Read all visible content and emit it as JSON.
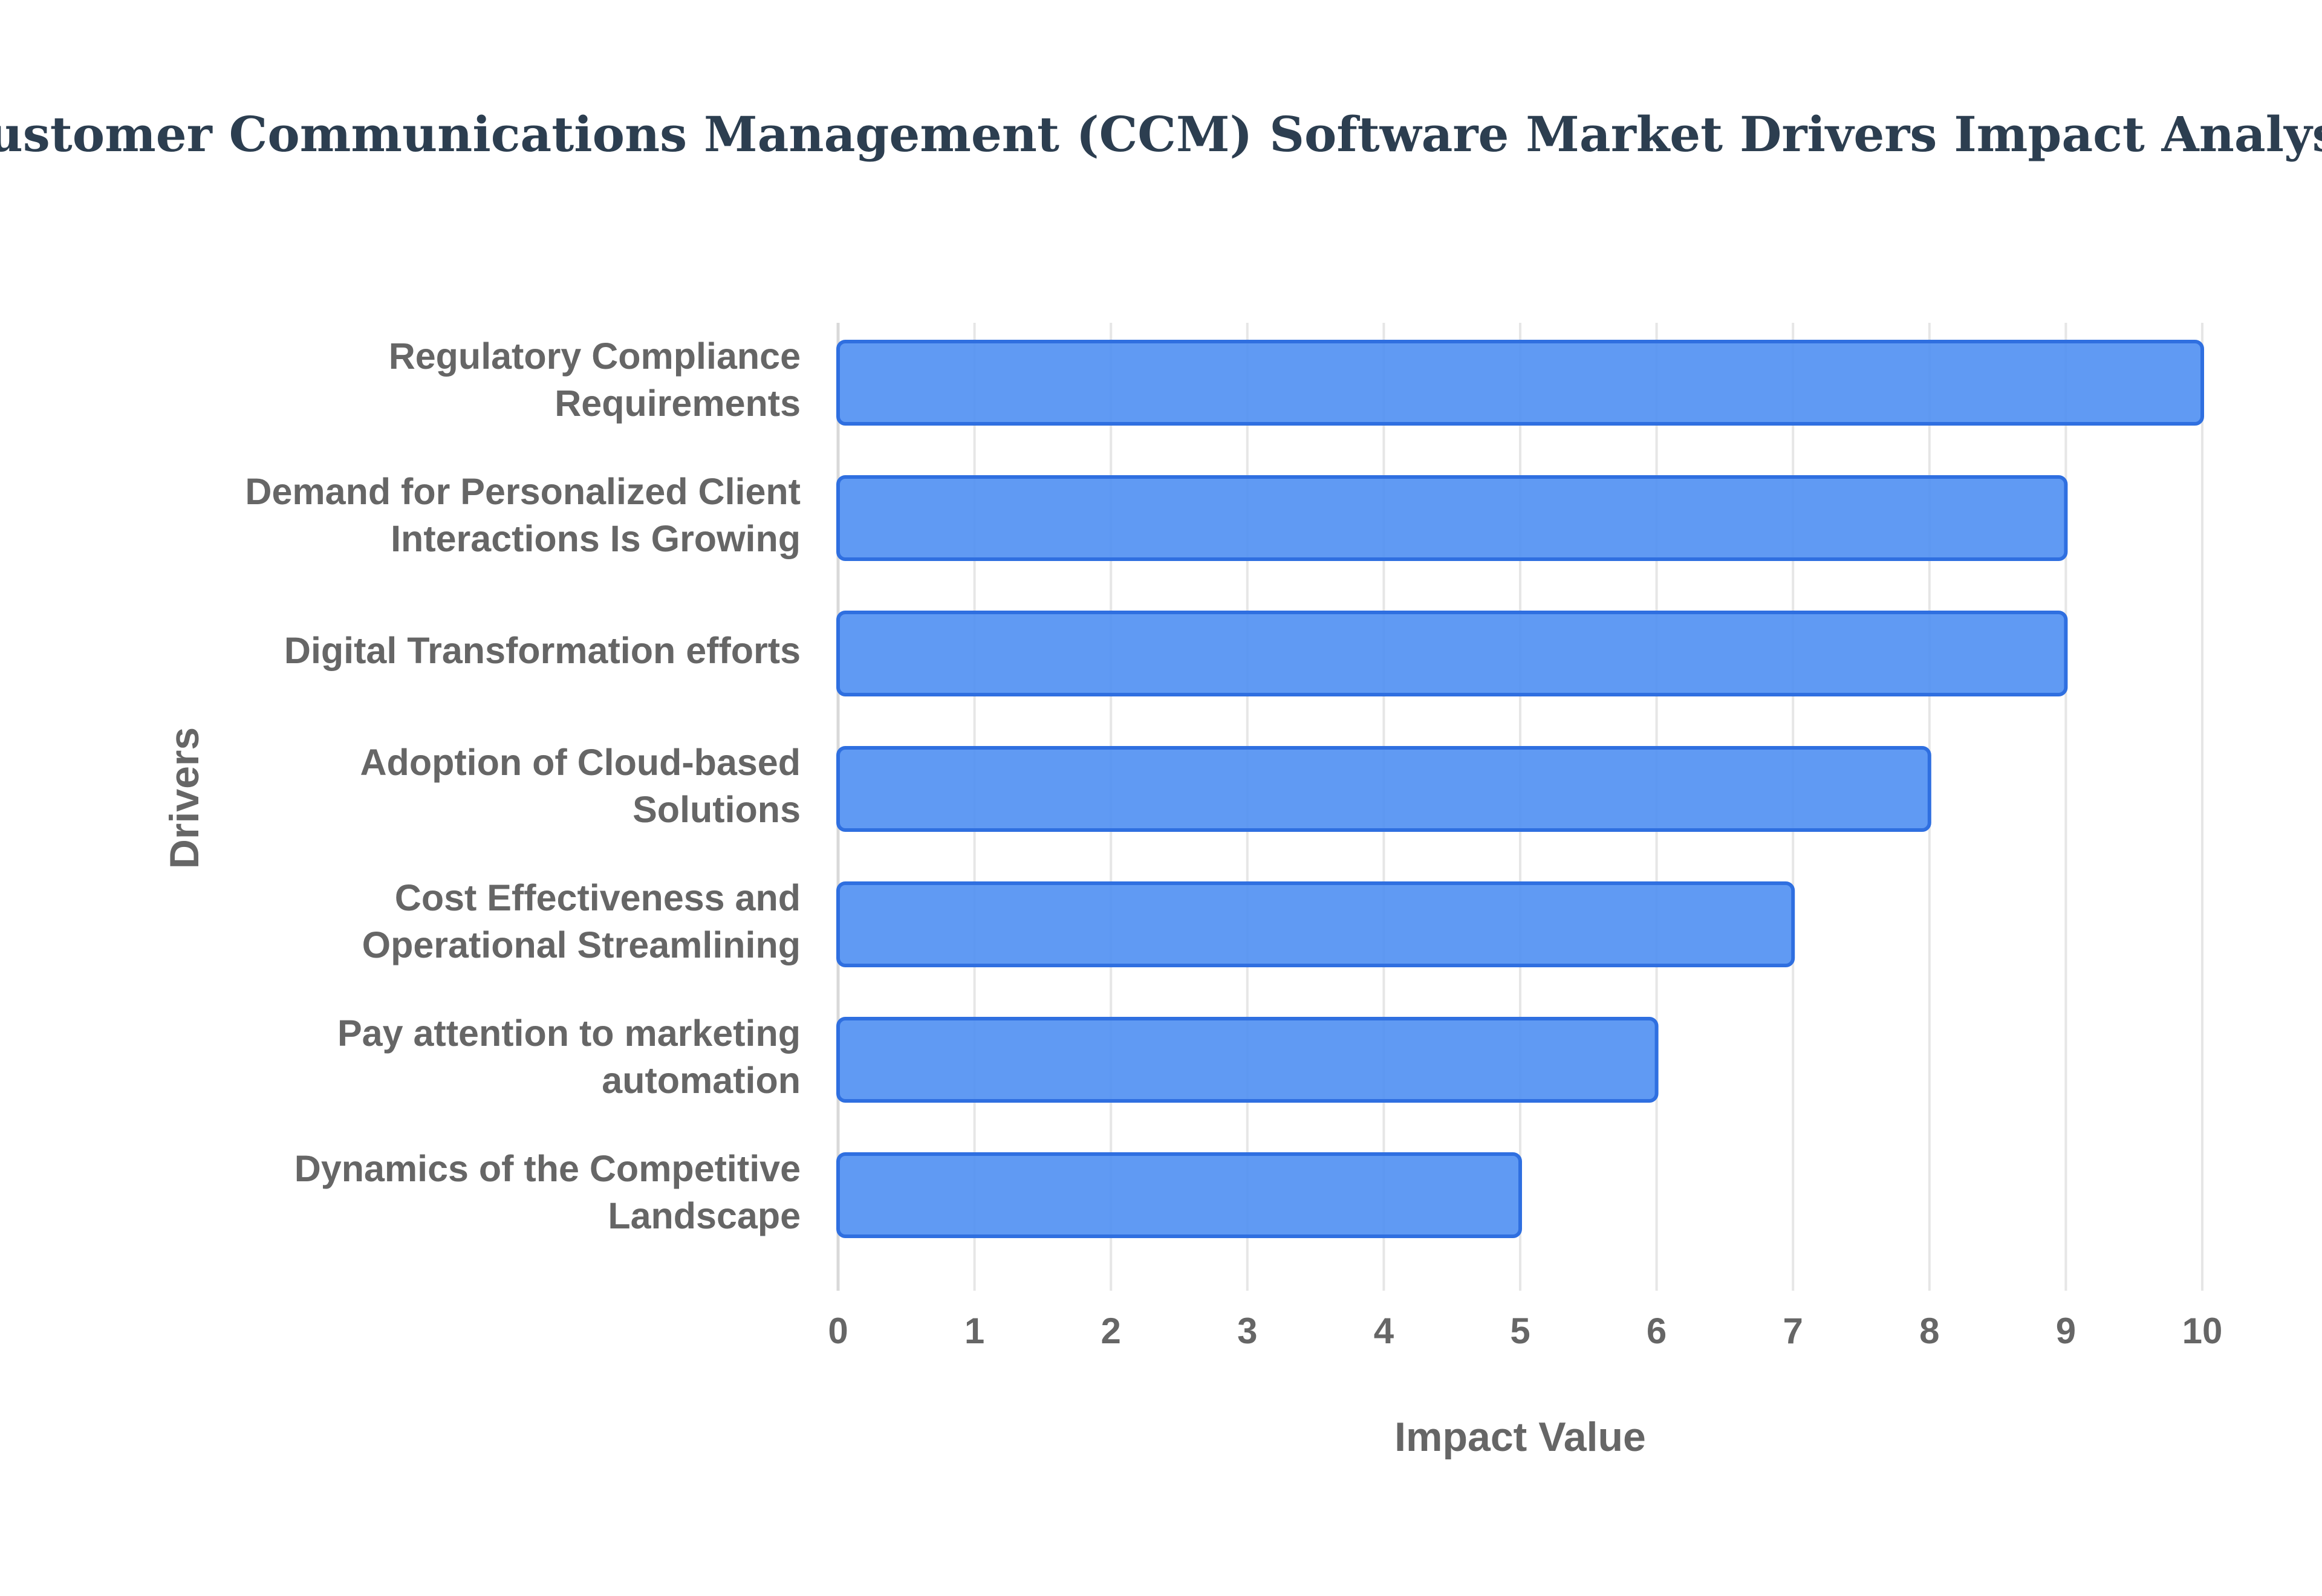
{
  "chart_data": {
    "type": "bar",
    "orientation": "horizontal",
    "title": "Customer Communications Management (CCM) Software Market Drivers Impact Analysis",
    "xlabel": "Impact Value",
    "ylabel": "Drivers",
    "xlim": [
      0,
      10
    ],
    "x_ticks": [
      "0",
      "1",
      "2",
      "3",
      "4",
      "5",
      "6",
      "7",
      "8",
      "9",
      "10"
    ],
    "grid": "vertical",
    "legend": "none",
    "colors": {
      "bar_fill": "#4f8ff2",
      "bar_stroke": "#2f6fe0",
      "title": "#2c3e50",
      "labels": "#666666"
    },
    "categories": [
      [
        "Regulatory Compliance",
        "Requirements"
      ],
      [
        "Demand for Personalized Client",
        "Interactions Is Growing"
      ],
      [
        "Digital Transformation efforts"
      ],
      [
        "Adoption of Cloud-based",
        "Solutions"
      ],
      [
        "Cost Effectiveness and",
        "Operational Streamlining"
      ],
      [
        "Pay attention to marketing",
        "automation"
      ],
      [
        "Dynamics of the Competitive",
        "Landscape"
      ]
    ],
    "values": [
      10,
      9,
      9,
      8,
      7,
      6,
      5
    ]
  }
}
